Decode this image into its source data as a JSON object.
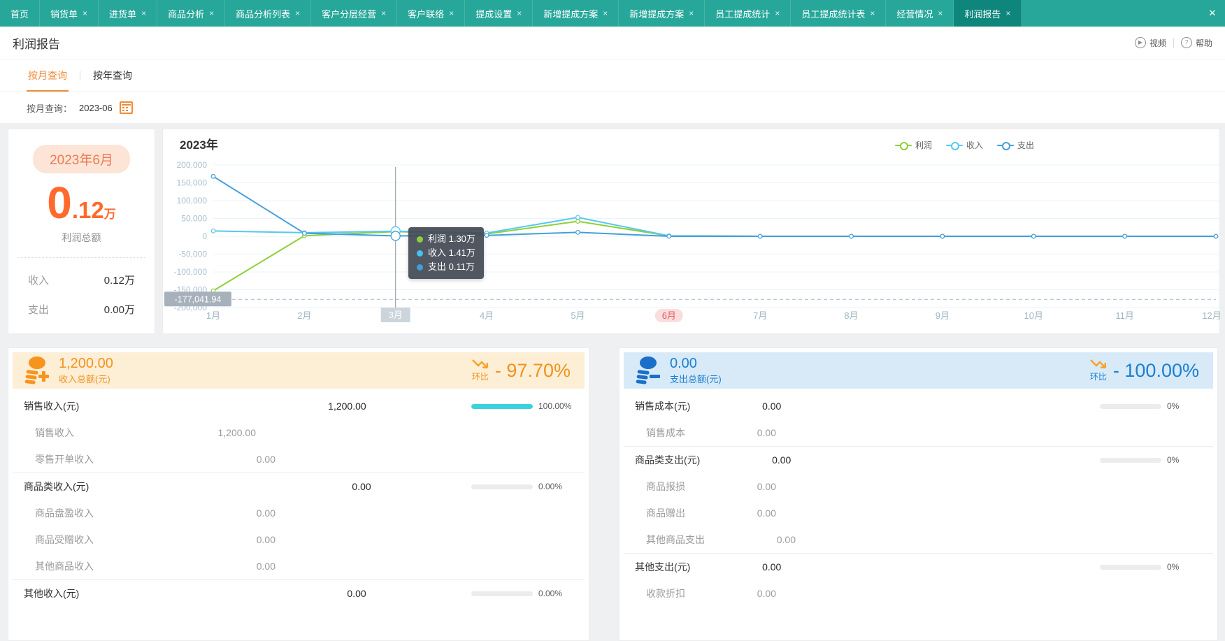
{
  "colors": {
    "topbar": "#27a79a",
    "topbar_active": "#0f867b",
    "accent_orange": "#f08c39",
    "profit_orange": "#ff6a2c",
    "income_accent": "#f0931f",
    "income_header_bg": "#fdeed6",
    "expense_accent": "#1b7fd2",
    "expense_header_bg": "#d8eaf7",
    "bar_fill": "#3bd2dc",
    "highlight_red": "#e05a5a"
  },
  "tab_bar": {
    "close_all": "✕",
    "tabs": [
      {
        "label": "首页",
        "closable": false,
        "active": false
      },
      {
        "label": "销货单",
        "closable": true,
        "active": false
      },
      {
        "label": "进货单",
        "closable": true,
        "active": false
      },
      {
        "label": "商品分析",
        "closable": true,
        "active": false
      },
      {
        "label": "商品分析列表",
        "closable": true,
        "active": false
      },
      {
        "label": "客户分层经营",
        "closable": true,
        "active": false
      },
      {
        "label": "客户联络",
        "closable": true,
        "active": false
      },
      {
        "label": "提成设置",
        "closable": true,
        "active": false
      },
      {
        "label": "新增提成方案",
        "closable": true,
        "active": false
      },
      {
        "label": "新增提成方案",
        "closable": true,
        "active": false
      },
      {
        "label": "员工提成统计",
        "closable": true,
        "active": false
      },
      {
        "label": "员工提成统计表",
        "closable": true,
        "active": false
      },
      {
        "label": "经营情况",
        "closable": true,
        "active": false
      },
      {
        "label": "利润报告",
        "closable": true,
        "active": true
      }
    ]
  },
  "header": {
    "title": "利润报告",
    "video": "视频",
    "help": "帮助"
  },
  "query_tabs": {
    "by_month": "按月查询",
    "by_year": "按年查询"
  },
  "filter": {
    "label": "按月查询：",
    "value": "2023-06"
  },
  "summary": {
    "period": "2023年6月",
    "value_int": "0",
    "value_dec": ".12",
    "unit": "万",
    "label": "利润总额",
    "income_label": "收入",
    "income_value": "0.12万",
    "expense_label": "支出",
    "expense_value": "0.00万"
  },
  "chart_data": {
    "type": "line",
    "title": "2023年",
    "categories": [
      "1月",
      "2月",
      "3月",
      "4月",
      "5月",
      "6月",
      "7月",
      "8月",
      "9月",
      "10月",
      "11月",
      "12月"
    ],
    "series": [
      {
        "name": "利润",
        "color": "#8ed03a",
        "values": [
          -153000,
          1500,
          13000,
          6500,
          42000,
          1200,
          0,
          0,
          0,
          0,
          0,
          0
        ]
      },
      {
        "name": "收入",
        "color": "#58c8ec",
        "values": [
          15000,
          10000,
          14100,
          9000,
          53000,
          1200,
          0,
          0,
          0,
          0,
          0,
          0
        ]
      },
      {
        "name": "支出",
        "color": "#459fd8",
        "values": [
          168000,
          8500,
          1100,
          2500,
          11000,
          0,
          0,
          0,
          0,
          0,
          0,
          0
        ]
      }
    ],
    "ylim": [
      -200000,
      200000
    ],
    "yticks": [
      200000,
      150000,
      100000,
      50000,
      0,
      -50000,
      -100000,
      -150000,
      -200000
    ],
    "ytick_labels": [
      "200,000",
      "150,000",
      "100,000",
      "50,000",
      "0",
      "-50,000",
      "-100,000",
      "-150,000",
      "-200,000"
    ],
    "grid": true,
    "legend_position": "top-right",
    "legend": [
      {
        "name": "利润",
        "color": "#8ed03a"
      },
      {
        "name": "收入",
        "color": "#58c8ec"
      },
      {
        "name": "支出",
        "color": "#459fd8"
      }
    ],
    "baseline": {
      "value": -177041.94,
      "label": "-177,041.94"
    },
    "crosshair_index": 2,
    "highlight_index": 5,
    "tooltip": {
      "month_index": 2,
      "items": [
        {
          "name": "利润",
          "value": "1.30万",
          "color": "#8ed03a"
        },
        {
          "name": "收入",
          "value": "1.41万",
          "color": "#45c2ee"
        },
        {
          "name": "支出",
          "value": "0.11万",
          "color": "#3f9fd8"
        }
      ]
    }
  },
  "income_panel": {
    "header": {
      "value": "1,200.00",
      "label": "收入总额(元)",
      "ratio_label": "环比",
      "ratio_value": "- 97.70%"
    },
    "groups": [
      {
        "label": "销售收入(元)",
        "value": "1,200.00",
        "percent": "100.00%",
        "percent_fill": 100,
        "children": [
          {
            "label": "销售收入",
            "value": "1,200.00"
          },
          {
            "label": "零售开单收入",
            "value": "0.00"
          }
        ]
      },
      {
        "label": "商品类收入(元)",
        "value": "0.00",
        "percent": "0.00%",
        "percent_fill": 0,
        "children": [
          {
            "label": "商品盘盈收入",
            "value": "0.00"
          },
          {
            "label": "商品受赠收入",
            "value": "0.00"
          },
          {
            "label": "其他商品收入",
            "value": "0.00"
          }
        ]
      },
      {
        "label": "其他收入(元)",
        "value": "0.00",
        "percent": "0.00%",
        "percent_fill": 0,
        "children": []
      }
    ]
  },
  "expense_panel": {
    "header": {
      "value": "0.00",
      "label": "支出总额(元)",
      "ratio_label": "环比",
      "ratio_value": "- 100.00%"
    },
    "groups": [
      {
        "label": "销售成本(元)",
        "value": "0.00",
        "percent": "0%",
        "percent_fill": 0,
        "children": [
          {
            "label": "销售成本",
            "value": "0.00"
          }
        ]
      },
      {
        "label": "商品类支出(元)",
        "value": "0.00",
        "percent": "0%",
        "percent_fill": 0,
        "children": [
          {
            "label": "商品报损",
            "value": "0.00"
          },
          {
            "label": "商品赠出",
            "value": "0.00"
          },
          {
            "label": "其他商品支出",
            "value": "0.00"
          }
        ]
      },
      {
        "label": "其他支出(元)",
        "value": "0.00",
        "percent": "0%",
        "percent_fill": 0,
        "children": [
          {
            "label": "收款折扣",
            "value": "0.00"
          }
        ]
      }
    ]
  }
}
